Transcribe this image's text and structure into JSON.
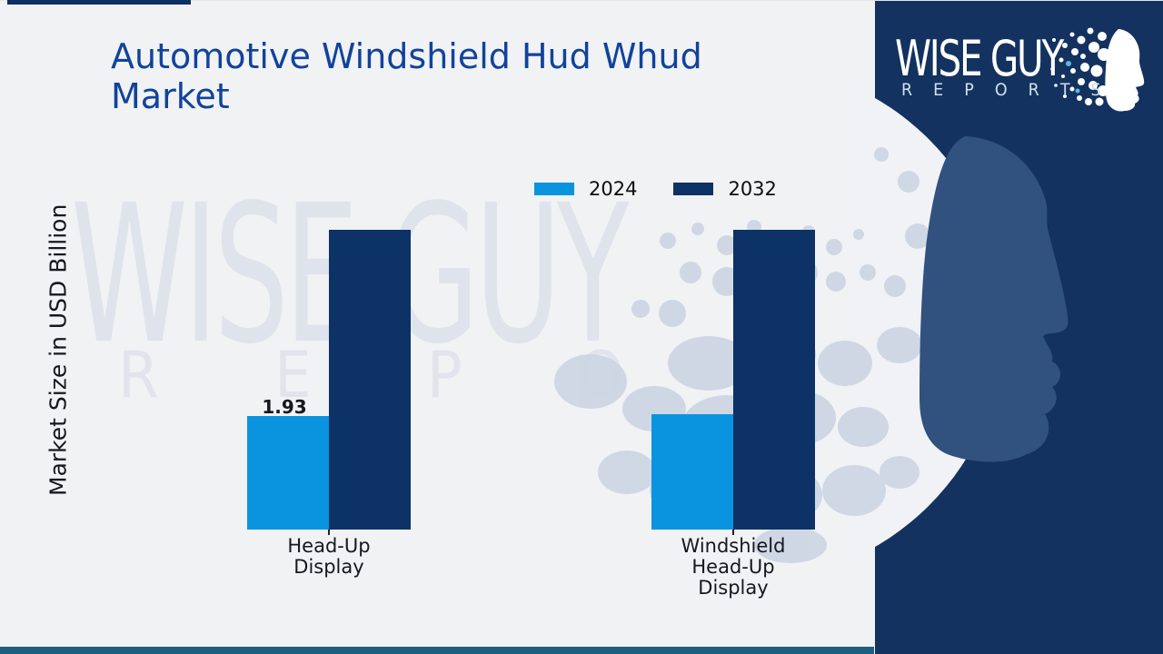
{
  "title": "Automotive Windshield Hud Whud Market",
  "logo": {
    "line1": "WISE GUY",
    "line2": "R E P O R T S"
  },
  "watermark": {
    "line1": "WISE GUY",
    "line2": "R E P O R T S"
  },
  "colors": {
    "accent_blue": "#0a94e0",
    "dark_navy_bar": "#0c3266",
    "brand_panel_navy": "#13325f",
    "title_blue": "#11439b",
    "teal_strip": "#1d5f7e",
    "background": "#f1f2f4"
  },
  "chart_data": {
    "type": "bar",
    "title": "Automotive Windshield Hud Whud Market",
    "xlabel": "",
    "ylabel": "Market Size in USD Billion",
    "categories": [
      "Head-Up Display",
      "Windshield Head-Up Display"
    ],
    "categories_lines": [
      [
        "Head-Up",
        "Display"
      ],
      [
        "Windshield",
        "Head-Up",
        "Display"
      ]
    ],
    "series": [
      {
        "name": "2024",
        "color": "#0a94e0",
        "values": [
          1.93,
          1.96
        ]
      },
      {
        "name": "2032",
        "color": "#0c3266",
        "values": [
          5.11,
          5.11
        ]
      }
    ],
    "value_labels": [
      {
        "series": "2024",
        "category": "Head-Up Display",
        "text": "1.93"
      }
    ],
    "ylim": [
      0,
      5.6
    ],
    "grid": false,
    "legend_position": "top-center"
  }
}
